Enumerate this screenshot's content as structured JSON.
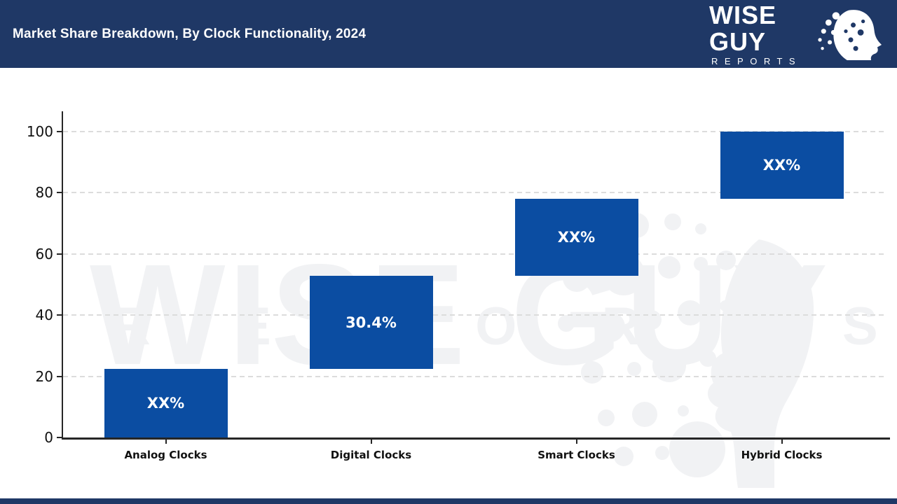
{
  "header": {
    "title": "Market Share Breakdown, By Clock Functionality, 2024",
    "logo_line1": "WISE GUY",
    "logo_line2": "REPORTS"
  },
  "watermark": {
    "line1": "WISE GUY",
    "line2": "REPORTS"
  },
  "icons": {
    "logo_face": "dotted-head-profile",
    "watermark_face": "dotted-head-profile"
  },
  "colors": {
    "header_bg": "#1f3866",
    "bar_fill": "#0b4da2",
    "grid": "#dcdcdc",
    "axis": "#262626",
    "watermark": "#f1f2f4",
    "bar_label_text": "#ffffff",
    "header_text": "#ffffff"
  },
  "chart_data": {
    "type": "bar",
    "subtype": "floating-segment (waterfall-style market share)",
    "title": "Market Share Breakdown, By Clock Functionality, 2024",
    "categories": [
      "Analog Clocks",
      "Digital Clocks",
      "Smart Clocks",
      "Hybrid Clocks"
    ],
    "series": [
      {
        "name": "Market share segment",
        "bars": [
          {
            "category": "Analog Clocks",
            "start": 0,
            "end": 22.3,
            "label": "XX%"
          },
          {
            "category": "Digital Clocks",
            "start": 22.3,
            "end": 52.7,
            "label": "30.4%"
          },
          {
            "category": "Smart Clocks",
            "start": 52.7,
            "end": 78.0,
            "label": "XX%"
          },
          {
            "category": "Hybrid Clocks",
            "start": 78.0,
            "end": 100,
            "label": "XX%"
          }
        ]
      }
    ],
    "y_ticks": [
      0,
      20,
      40,
      60,
      80,
      100
    ],
    "ylim": [
      0,
      106
    ],
    "xlabel": "",
    "ylabel": "",
    "grid": "horizontal dashed",
    "legend": "none"
  }
}
